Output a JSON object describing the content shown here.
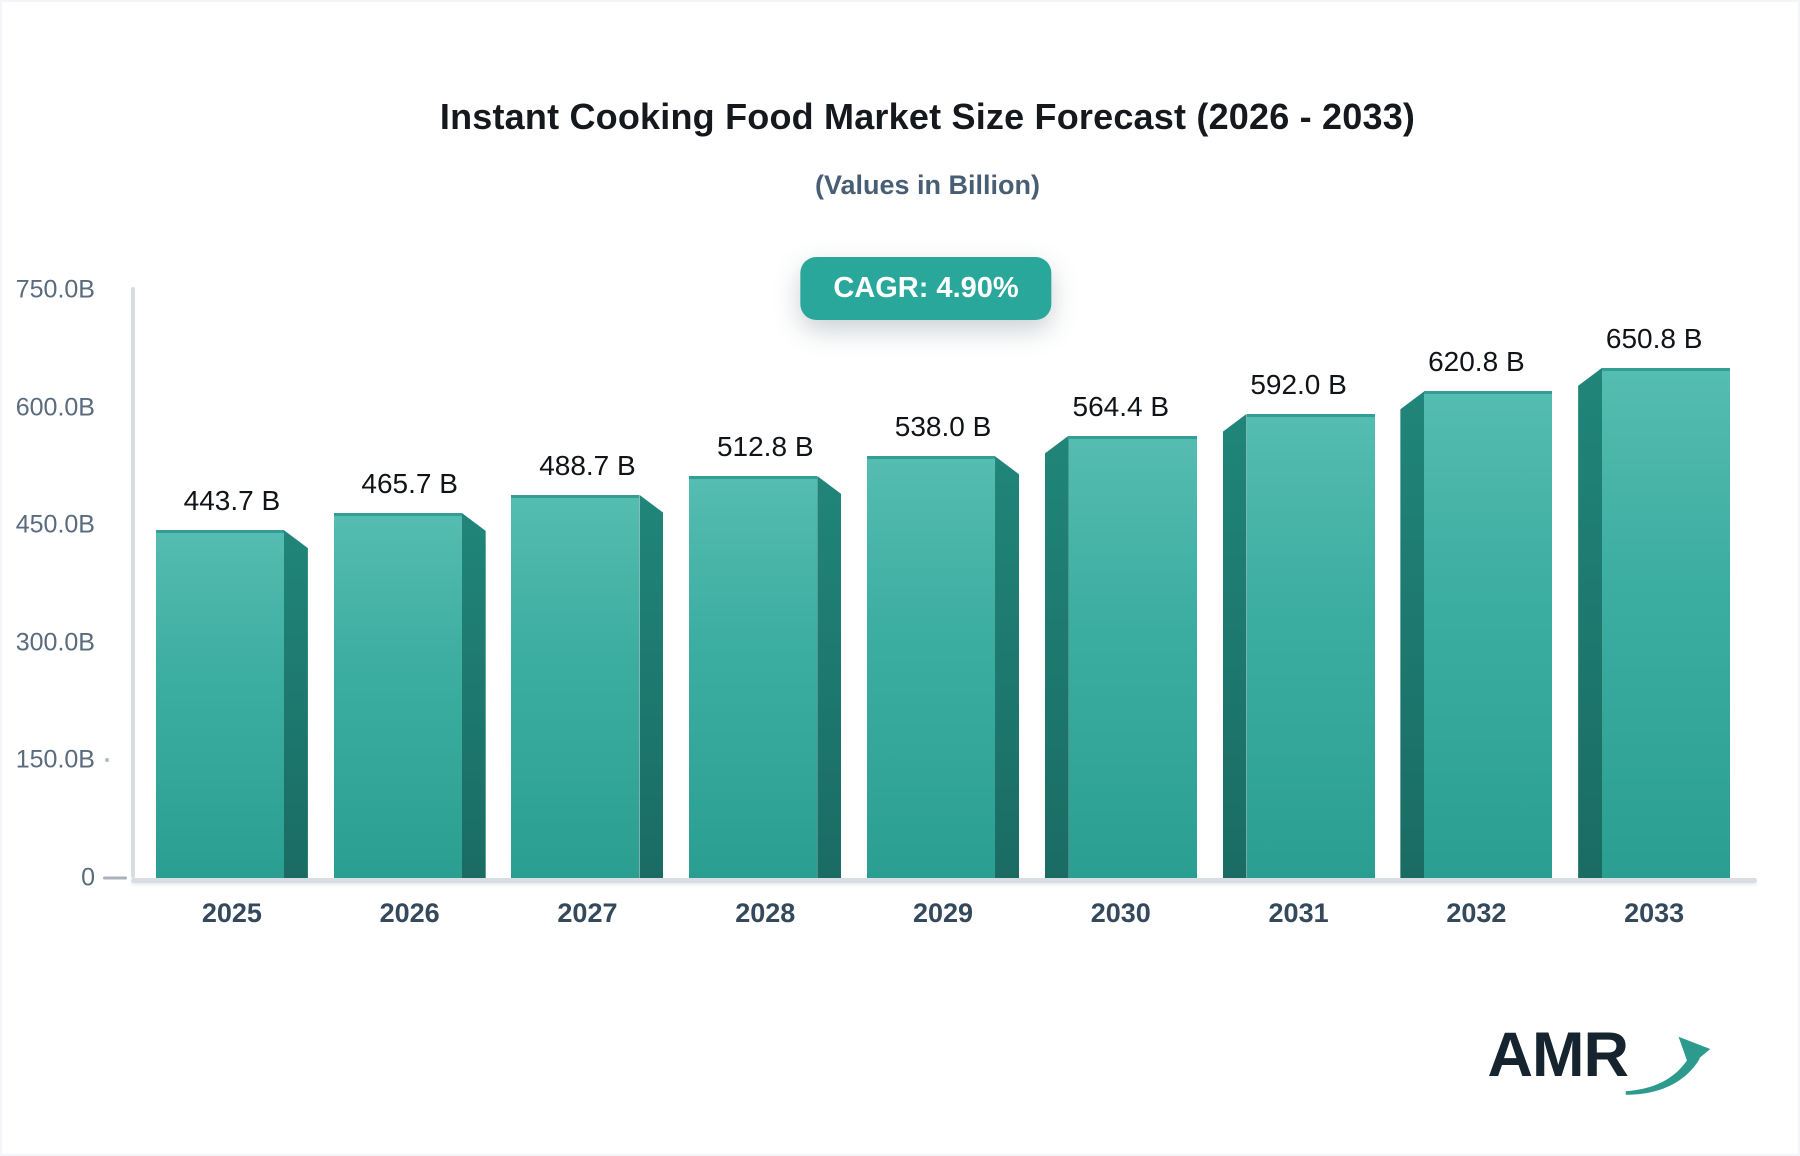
{
  "cagr_badge": {
    "label": "CAGR: 4.90%",
    "bg_color": "#2aa79b",
    "text_color": "#ffffff"
  },
  "chart_data": {
    "type": "bar",
    "title": "Instant Cooking Food Market Size Forecast (2026 - 2033)",
    "subtitle": "(Values in Billion)",
    "categories": [
      "2025",
      "2026",
      "2027",
      "2028",
      "2029",
      "2030",
      "2031",
      "2032",
      "2033"
    ],
    "values": [
      443.7,
      465.7,
      488.7,
      512.8,
      538.0,
      564.4,
      592.0,
      620.8,
      650.8
    ],
    "value_labels": [
      "443.7 B",
      "465.7 B",
      "488.7 B",
      "512.8 B",
      "538.0 B",
      "564.4 B",
      "592.0 B",
      "620.8 B",
      "650.8 B"
    ],
    "y_ticks": [
      {
        "label": "750.0B",
        "value": 750
      },
      {
        "label": "600.0B",
        "value": 600
      },
      {
        "label": "450.0B",
        "value": 450
      },
      {
        "label": "300.0B",
        "value": 300
      },
      {
        "label": "150.0B",
        "value": 150
      },
      {
        "label": "0",
        "value": 0
      }
    ],
    "ylim": [
      0,
      750
    ],
    "xlabel": "",
    "ylabel": "",
    "grid": false,
    "legend": "none",
    "bar_face_color_top": "#55bcb1",
    "bar_face_color_bottom": "#2b9e92",
    "bar_side_color": "#1e7d73",
    "side_face_direction": [
      "right",
      "right",
      "right",
      "right",
      "right",
      "left",
      "left",
      "left",
      "left"
    ],
    "axis_color": "#d8dde3"
  },
  "logo": {
    "text": "AMR",
    "text_color": "#16242f",
    "arrow_color": "#2d9a8e"
  }
}
